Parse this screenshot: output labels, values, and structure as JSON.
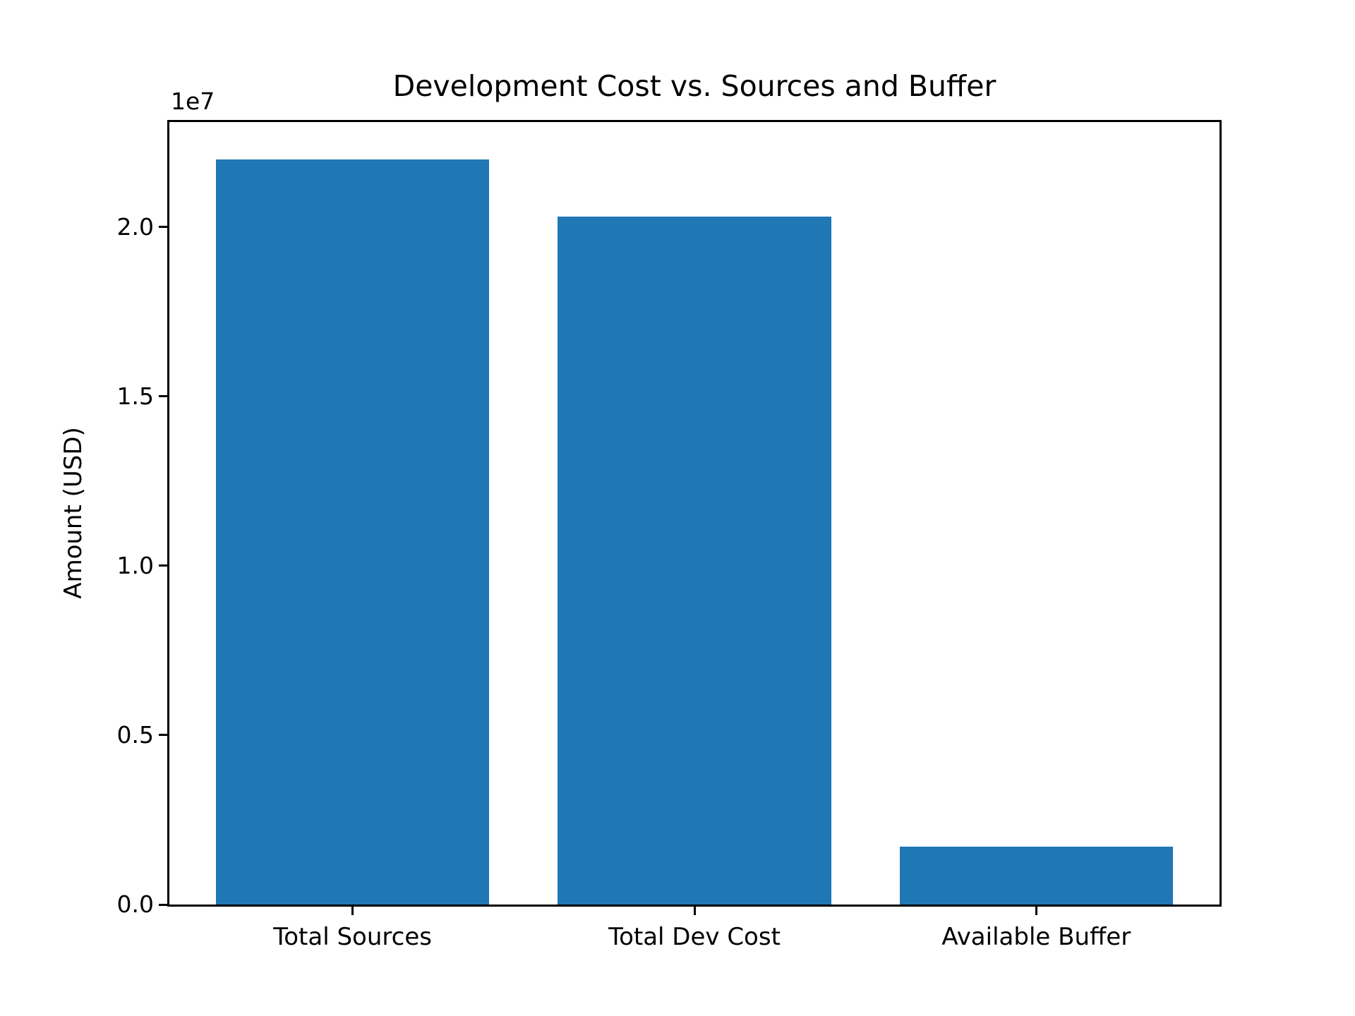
{
  "chart_data": {
    "type": "bar",
    "title": "Development Cost vs. Sources and Buffer",
    "xlabel": "",
    "ylabel": "Amount (USD)",
    "y_offset_text": "1e7",
    "categories": [
      "Total Sources",
      "Total Dev Cost",
      "Available Buffer"
    ],
    "values": [
      22000000,
      20300000,
      1700000
    ],
    "bar_color": "#1f77b4",
    "bar_width": 0.8,
    "xlim": [
      -0.536,
      2.536
    ],
    "ylim": [
      0,
      23100000
    ],
    "yticks": [
      {
        "value": 0,
        "label": "0.0"
      },
      {
        "value": 5000000,
        "label": "0.5"
      },
      {
        "value": 10000000,
        "label": "1.0"
      },
      {
        "value": 15000000,
        "label": "1.5"
      },
      {
        "value": 20000000,
        "label": "2.0"
      }
    ],
    "grid": false,
    "legend": null
  }
}
